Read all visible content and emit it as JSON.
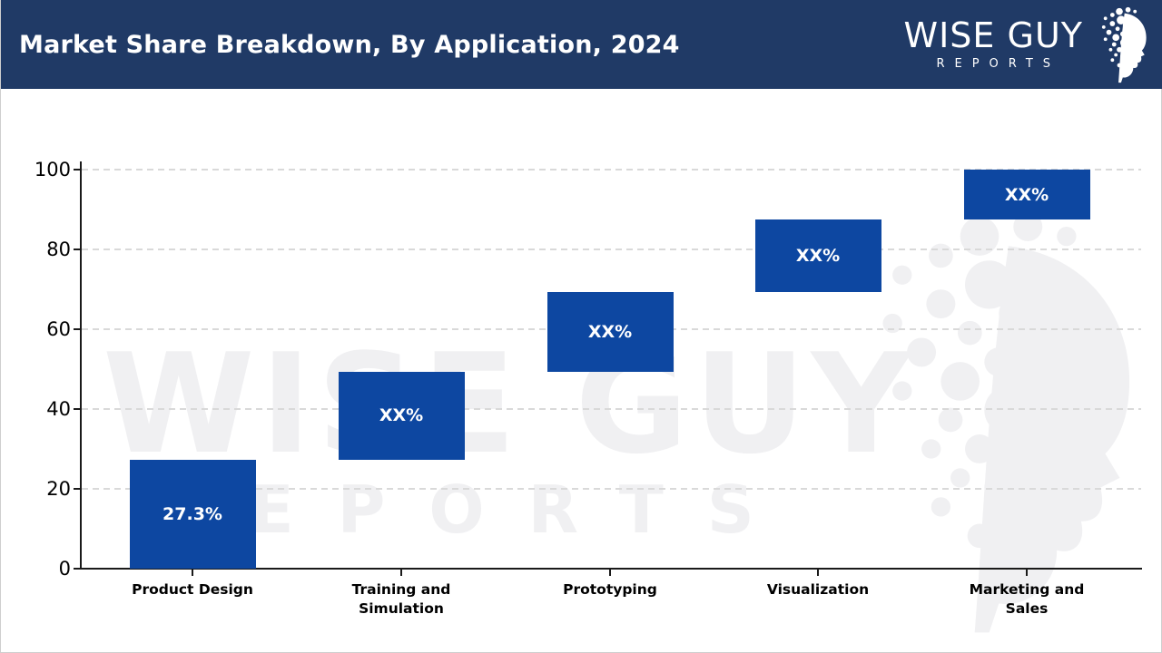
{
  "header": {
    "title": "Market Share Breakdown, By Application, 2024",
    "bg_color": "#203a66",
    "logo": {
      "line1": "WISE GUY",
      "line2": "REPORTS"
    }
  },
  "watermark": {
    "line1": "WISE GUY",
    "line2": "REPORTS"
  },
  "chart_data": {
    "type": "bar",
    "subtype": "floating-waterfall",
    "title": "Market Share Breakdown, By Application, 2024",
    "categories": [
      "Product Design",
      "Training and Simulation",
      "Prototyping",
      "Visualization",
      "Marketing and Sales"
    ],
    "bars": [
      {
        "category": "Product Design",
        "start": 0,
        "end": 27.3,
        "value": 27.3,
        "label": "27.3%"
      },
      {
        "category": "Training and Simulation",
        "start": 27.3,
        "end": 49.3,
        "value": 22.0,
        "label": "XX%"
      },
      {
        "category": "Prototyping",
        "start": 49.3,
        "end": 69.3,
        "value": 20.0,
        "label": "XX%"
      },
      {
        "category": "Visualization",
        "start": 69.3,
        "end": 87.5,
        "value": 18.2,
        "label": "XX%"
      },
      {
        "category": "Marketing and Sales",
        "start": 87.5,
        "end": 100,
        "value": 12.5,
        "label": "XX%"
      }
    ],
    "xlabel": "",
    "ylabel": "",
    "ylim": [
      0,
      100
    ],
    "yticks": [
      0,
      20,
      40,
      60,
      80,
      100
    ],
    "grid": "horizontal-dashed",
    "legend": "none",
    "bar_color": "#0d47a1",
    "grid_color": "#d9d9d9",
    "value_label_color": "#ffffff"
  }
}
